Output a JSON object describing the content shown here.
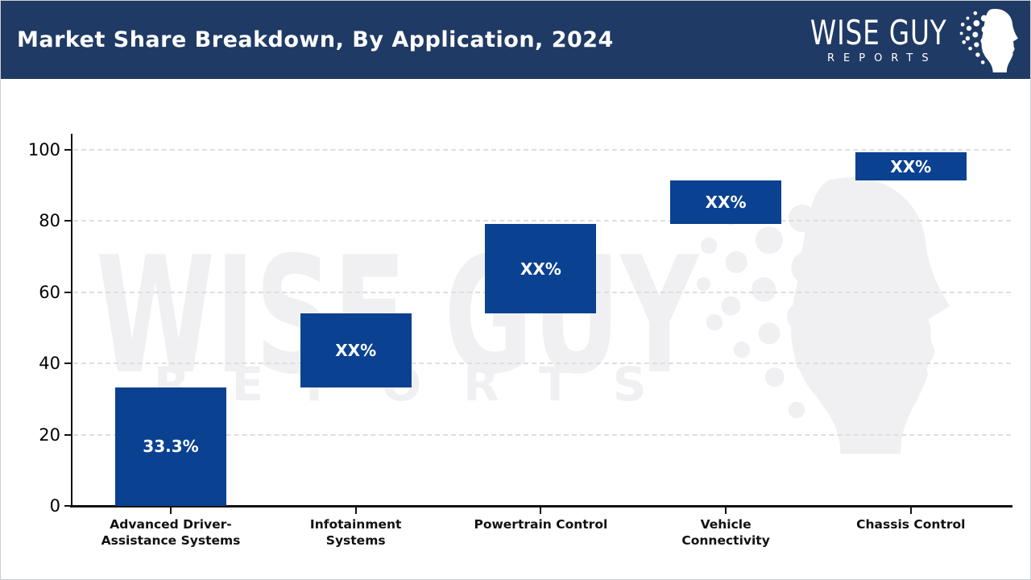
{
  "header": {
    "title": "Market Share Breakdown, By Application, 2024",
    "logo": {
      "line1": "WISE GUY",
      "line2": "REPORTS"
    }
  },
  "watermark": {
    "line1": "WISE GUY",
    "line2": "REPORTS"
  },
  "colors": {
    "header_navy": "#1f3a64",
    "bar_blue": "#0a4191",
    "grid_gray": "#dedede",
    "axis_black": "#111111",
    "watermark_gray": "#f0f0f2"
  },
  "chart_data": {
    "type": "bar",
    "subtype": "waterfall",
    "title": "Market Share Breakdown, By Application, 2024",
    "categories": [
      "Advanced Driver-\nAssistance Systems",
      "Infotainment\nSystems",
      "Powertrain Control",
      "Vehicle\nConnectivity",
      "Chassis Control"
    ],
    "segments": [
      {
        "start": 0,
        "end": 33.3,
        "label": "33.3%"
      },
      {
        "start": 33.3,
        "end": 54,
        "label": "XX%"
      },
      {
        "start": 54,
        "end": 79,
        "label": "XX%"
      },
      {
        "start": 79,
        "end": 91.3,
        "label": "XX%"
      },
      {
        "start": 91.3,
        "end": 99.2,
        "label": "XX%"
      }
    ],
    "ylabel": "",
    "xlabel": "",
    "yticks": [
      0,
      20,
      40,
      60,
      80,
      100
    ],
    "ylim": [
      0,
      104
    ],
    "grid": "horizontal-dashed",
    "legend": "none",
    "bar_color": "#0a4191",
    "bar_label_color": "#ffffff"
  }
}
